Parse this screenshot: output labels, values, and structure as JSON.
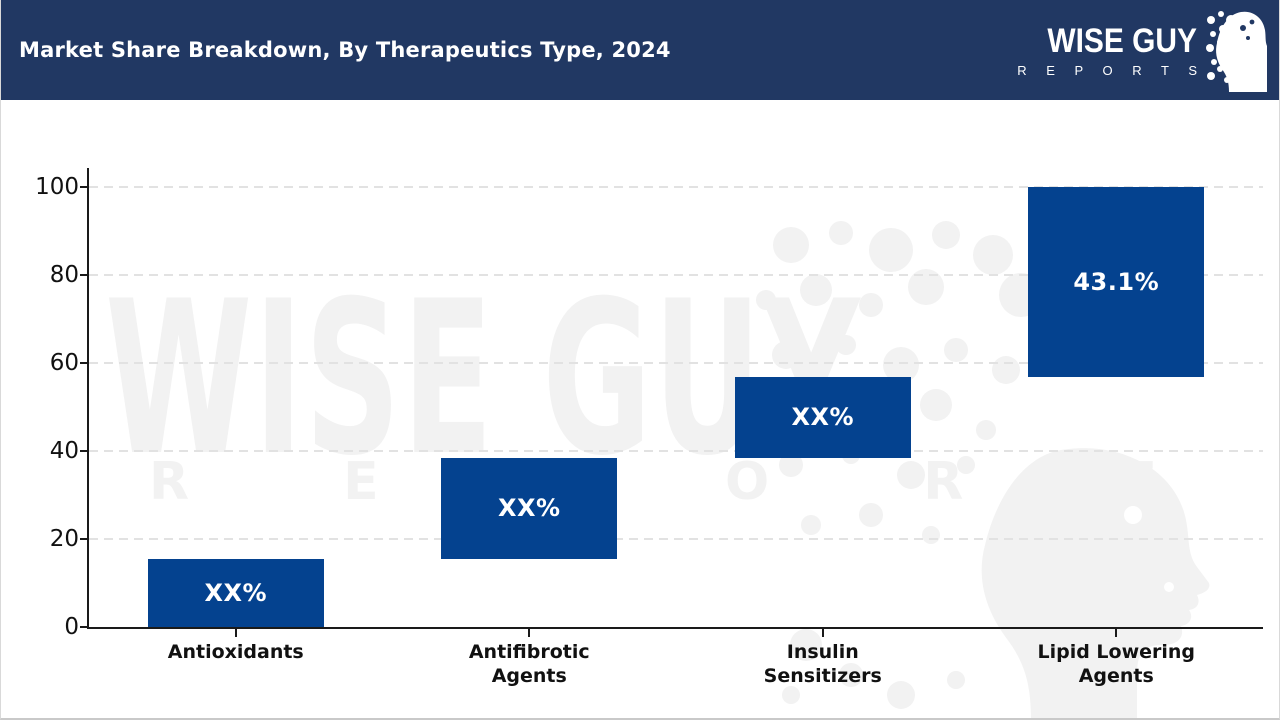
{
  "header": {
    "title": "Market Share Breakdown, By Therapeutics Type, 2024",
    "logo": {
      "line1": "WISE GUY",
      "line2": "R E P O R T S"
    }
  },
  "watermark": {
    "line1": "WISE GUY",
    "line2": "R E P O R T S"
  },
  "colors": {
    "header_bg": "#213863",
    "bar": "#04428f",
    "bar_label": "#ffffff",
    "title_text": "#ffffff",
    "watermark": "#f2f2f2",
    "gridline": "#e2e2e2",
    "axis": "#1a1a1a"
  },
  "chart_data": {
    "type": "bar",
    "subtype": "waterfall",
    "title": "Market Share Breakdown, By Therapeutics Type, 2024",
    "categories": [
      "Antioxidants",
      "Antifibrotic\nAgents",
      "Insulin\nSensitizers",
      "Lipid Lowering\nAgents"
    ],
    "segments": [
      {
        "start": 0,
        "end": 15.5
      },
      {
        "start": 15.5,
        "end": 38.5
      },
      {
        "start": 38.5,
        "end": 56.9
      },
      {
        "start": 56.9,
        "end": 100
      }
    ],
    "values": [
      15.5,
      23.0,
      18.4,
      43.1
    ],
    "bar_labels": [
      "XX%",
      "XX%",
      "XX%",
      "43.1%"
    ],
    "yticks": [
      0,
      20,
      40,
      60,
      80,
      100
    ],
    "ylim": [
      0,
      105
    ],
    "xlabel": "",
    "ylabel": "",
    "grid": "dashed-horizontal",
    "legend": "none"
  }
}
